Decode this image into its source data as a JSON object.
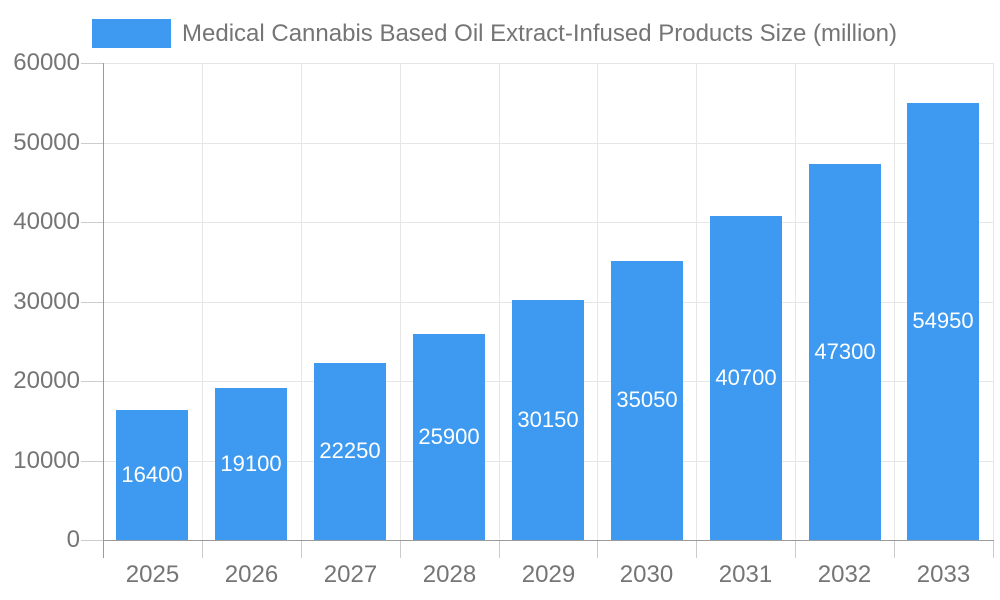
{
  "legend": {
    "label": "Medical Cannabis Based Oil Extract-Infused Products Size (million)"
  },
  "chart_data": {
    "type": "bar",
    "title": "Medical Cannabis Based Oil Extract-Infused Products Size (million)",
    "categories": [
      "2025",
      "2026",
      "2027",
      "2028",
      "2029",
      "2030",
      "2031",
      "2032",
      "2033"
    ],
    "values": [
      16400,
      19100,
      22250,
      25900,
      30150,
      35050,
      40700,
      47300,
      54950
    ],
    "bar_value_labels": [
      "16400",
      "19100",
      "22250",
      "25900",
      "30150",
      "35050",
      "40700",
      "47300",
      "54950"
    ],
    "xlabel": "",
    "ylabel": "",
    "ylim": [
      0,
      60000
    ],
    "y_ticks": [
      0,
      10000,
      20000,
      30000,
      40000,
      50000,
      60000
    ],
    "y_tick_labels": [
      "0",
      "10000",
      "20000",
      "30000",
      "40000",
      "50000",
      "60000"
    ],
    "grid": true,
    "legend_position": "top-left",
    "colors": {
      "bar": "#3d9af0",
      "bar_label_text": "#ffffff",
      "axis_text": "#757575",
      "gridline": "#e6e6e6",
      "tick": "#cccccc",
      "axis_line": "#9a9a9a",
      "background": "#ffffff"
    }
  }
}
